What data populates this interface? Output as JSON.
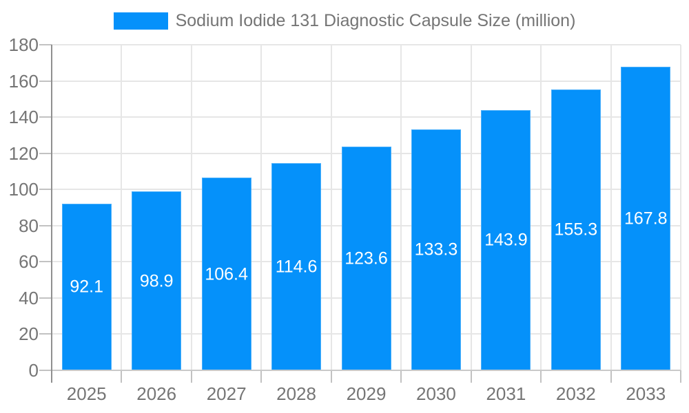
{
  "legend": {
    "label": "Sodium Iodide 131 Diagnostic Capsule Size (million)"
  },
  "chart_data": {
    "type": "bar",
    "title": "Sodium Iodide 131 Diagnostic Capsule Size (million)",
    "categories": [
      "2025",
      "2026",
      "2027",
      "2028",
      "2029",
      "2030",
      "2031",
      "2032",
      "2033"
    ],
    "values": [
      92.1,
      98.9,
      106.4,
      114.6,
      123.6,
      133.3,
      143.9,
      155.3,
      167.8
    ],
    "value_labels": [
      "92.1",
      "98.9",
      "106.4",
      "114.6",
      "123.6",
      "133.3",
      "143.9",
      "155.3",
      "167.8"
    ],
    "xlabel": "",
    "ylabel": "",
    "ylim": [
      0,
      180
    ],
    "yticks": [
      0,
      20,
      40,
      60,
      80,
      100,
      120,
      140,
      160,
      180
    ],
    "grid": true,
    "legend_position": "top-center",
    "colors": {
      "bar": "#0591fa",
      "value_label": "#ffffff",
      "axis_text": "#757575",
      "gridline": "#e6e6e6",
      "baseline": "#c9c9c9",
      "axis_line": "#8f8f8f",
      "tick": "#c2c2c2",
      "background": "#ffffff"
    }
  }
}
